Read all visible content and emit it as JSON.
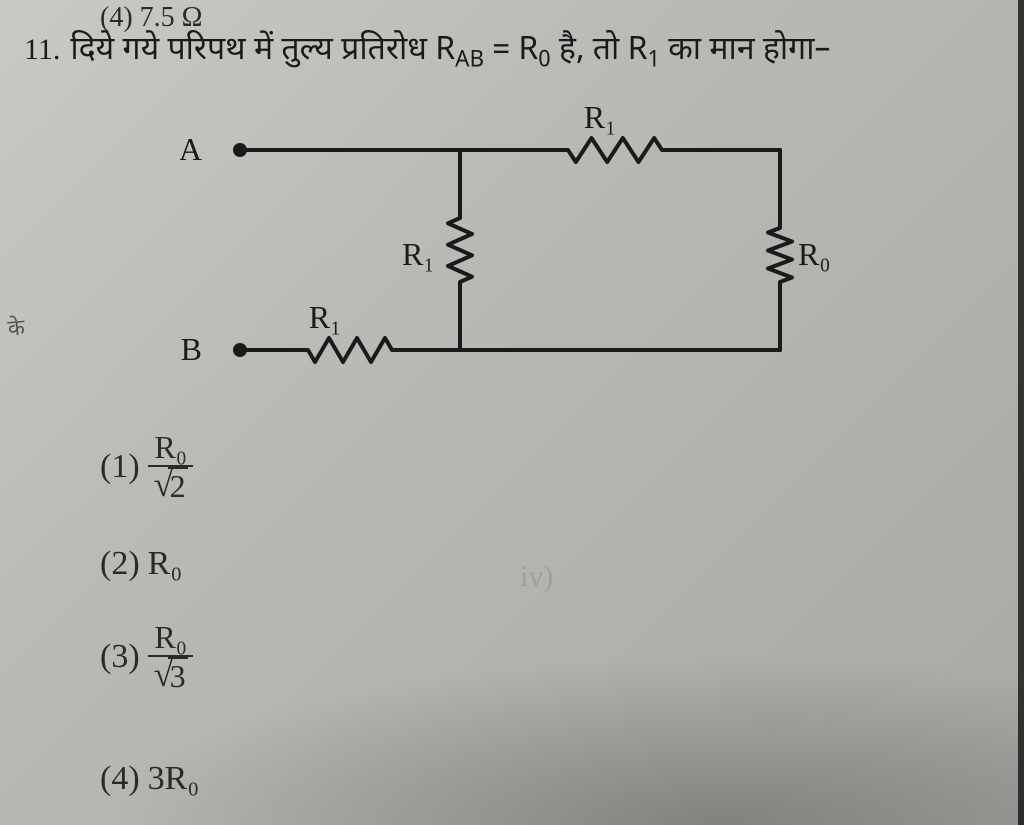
{
  "prev_option": "(4) 7.5 Ω",
  "question": {
    "number": "11.",
    "text_hi": "दिये गये परिपथ में तुल्य प्रतिरोध R",
    "text_hi_2": " = R",
    "text_hi_3": " है, तो R",
    "text_hi_4": " का मान होगा–",
    "sub_ab": "AB",
    "sub_0": "0",
    "sub_1": "1"
  },
  "circuit": {
    "terminals": {
      "A": "A",
      "B": "B"
    },
    "labels": {
      "R1": "R₁",
      "R0": "R₀"
    },
    "stroke": "#1a1a1a",
    "stroke_width": 4,
    "dot_radius": 7,
    "font_size": 32
  },
  "options": {
    "opt1": {
      "prefix": "(1)",
      "num": "R₀",
      "den_radicand": "2"
    },
    "opt2": {
      "prefix": "(2)",
      "value": "R₀"
    },
    "opt3": {
      "prefix": "(3)",
      "num": "R₀",
      "den_radicand": "3"
    },
    "opt4": {
      "prefix": "(4)",
      "value": "3R₀"
    }
  },
  "margin_note": "के",
  "colors": {
    "bg": "#bfc0bd",
    "text": "#2a2a2a"
  }
}
